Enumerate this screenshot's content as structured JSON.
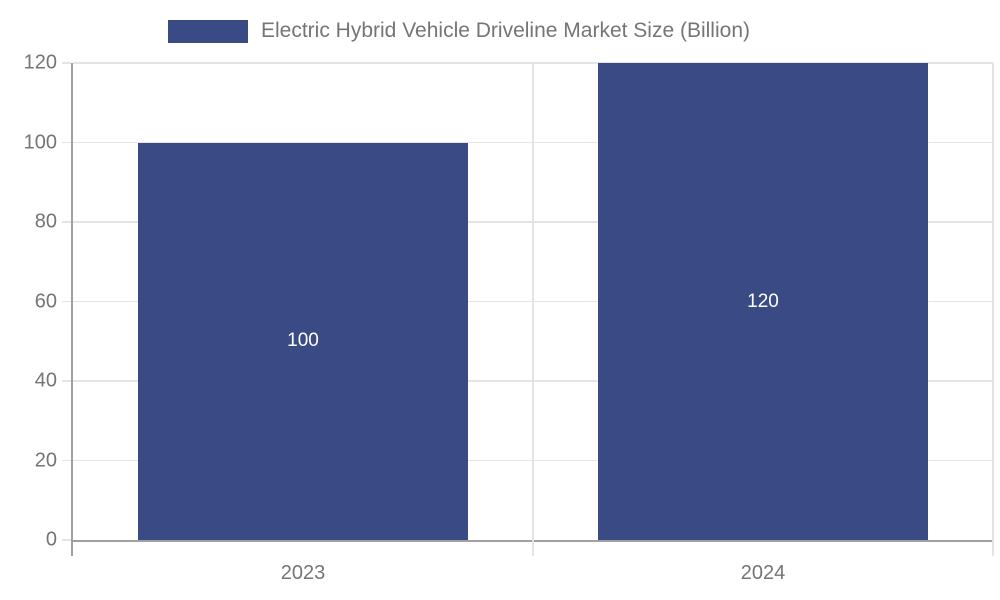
{
  "legend": {
    "label": "Electric Hybrid Vehicle Driveline Market Size (Billion)"
  },
  "colors": {
    "bar": "#3A4A84",
    "grid": "#e4e4e4",
    "axis": "#a0a0a0",
    "tick_label": "#757575",
    "value_label": "#ffffff",
    "background": "#ffffff"
  },
  "chart_data": {
    "type": "bar",
    "title": "Electric Hybrid Vehicle Driveline Market Size (Billion)",
    "categories": [
      "2023",
      "2024"
    ],
    "values": [
      100,
      120
    ],
    "bar_labels": [
      "100",
      "120"
    ],
    "xlabel": "",
    "ylabel": "",
    "ylim": [
      0,
      120
    ],
    "yticks": [
      0,
      20,
      40,
      60,
      80,
      100,
      120
    ],
    "grid": true,
    "legend_position": "top-center",
    "legend_entries": [
      "Electric Hybrid Vehicle Driveline Market Size (Billion)"
    ]
  }
}
